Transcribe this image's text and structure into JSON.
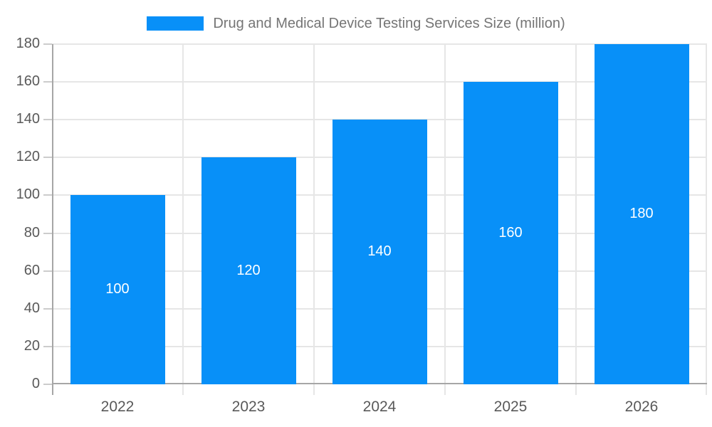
{
  "chart_data": {
    "type": "bar",
    "title": "Drug and Medical Device Testing Services Size (million)",
    "categories": [
      "2022",
      "2023",
      "2024",
      "2025",
      "2026"
    ],
    "series": [
      {
        "name": "Drug and Medical Device Testing Services Size (million)",
        "values": [
          100,
          120,
          140,
          160,
          180
        ]
      }
    ],
    "value_labels_shown": true,
    "xlabel": "",
    "ylabel": "",
    "ylim": [
      0,
      180
    ],
    "ytick_step": 20,
    "yticks": [
      0,
      20,
      40,
      60,
      80,
      100,
      120,
      140,
      160,
      180
    ],
    "grid": "horizontal and vertical category boundaries",
    "legend_position": "top-center",
    "colors": {
      "bar": "#0890f8",
      "value_label": "#ffffff",
      "gridline": "#e6e6e6",
      "axis_line": "#a6a6a6",
      "tick_mark": "#cccccc",
      "tick_label": "#595959",
      "legend_text": "#757575",
      "background": "#ffffff"
    }
  }
}
